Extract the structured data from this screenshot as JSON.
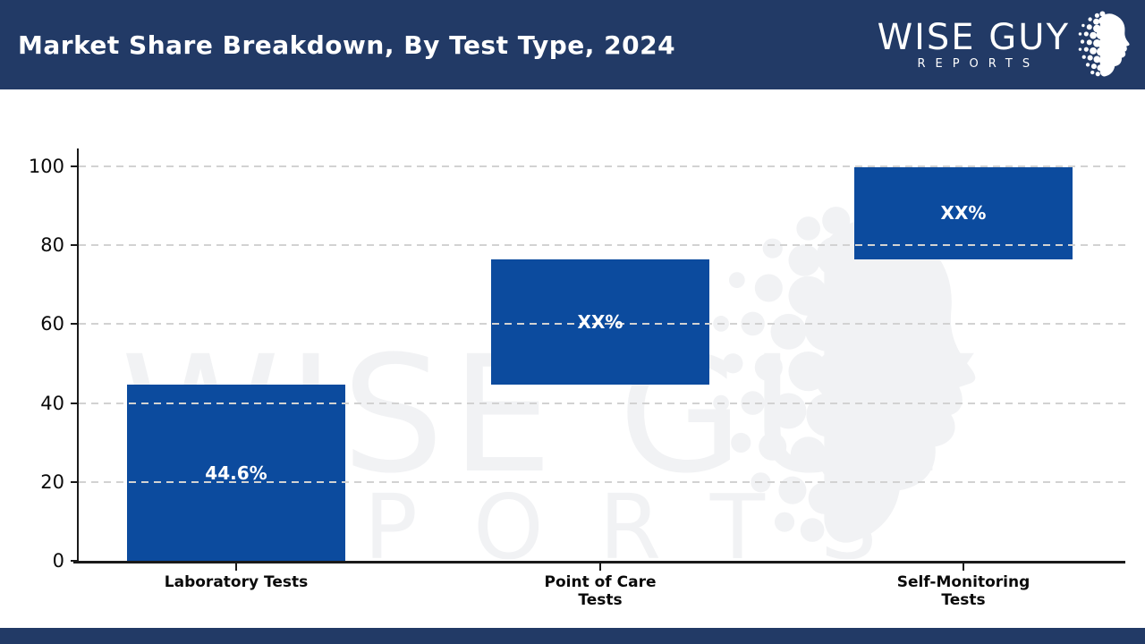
{
  "header": {
    "title": "Market Share Breakdown, By Test Type, 2024",
    "logo": {
      "line1": "WISE GUY",
      "line2": "REPORTS"
    }
  },
  "watermark": {
    "line1": "WISE GUY",
    "line2": "REPORTS"
  },
  "chart_data": {
    "type": "bar",
    "variant": "waterfall",
    "title": "Market Share Breakdown, By Test Type, 2024",
    "categories": [
      "Laboratory Tests",
      "Point of Care Tests",
      "Self-Monitoring Tests"
    ],
    "tick_labels": [
      "Laboratory Tests",
      "Point of Care\nTests",
      "Self-Monitoring\nTests"
    ],
    "segments": [
      {
        "category": "Laboratory Tests",
        "start": 0,
        "end": 44.6,
        "label": "44.6%"
      },
      {
        "category": "Point of Care Tests",
        "start": 44.6,
        "end": 76.5,
        "label": "XX%"
      },
      {
        "category": "Self-Monitoring Tests",
        "start": 76.5,
        "end": 99.7,
        "label": "XX%"
      }
    ],
    "yticks": [
      0,
      20,
      40,
      60,
      80,
      100
    ],
    "ylim": [
      0,
      105
    ],
    "xlabel": "",
    "ylabel": "",
    "grid": "horizontal-dashed",
    "legend": "none"
  },
  "colors": {
    "header_bg": "#223a66",
    "bar": "#0c4b9e",
    "bar_label": "#ffffff",
    "grid": "#d2d2d2",
    "axis": "#1a1a1a",
    "watermark": "#f1f2f4",
    "title_text": "#ffffff"
  }
}
